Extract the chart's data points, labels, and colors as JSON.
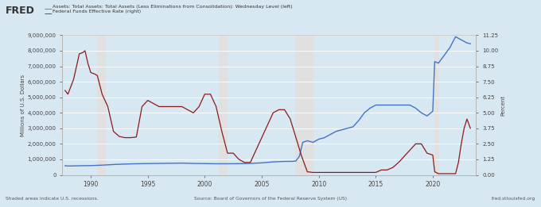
{
  "title_fred": "FRED",
  "legend_line1": "Assets: Total Assets: Total Assets (Less Eliminations from Consolidation): Wednesday Level (left)",
  "legend_line2": "Federal Funds Effective Rate (right)",
  "ylabel_left": "Millions of U.S. Dollars",
  "ylabel_right": "Percent",
  "xlabel_ticks": [
    1990,
    1995,
    2000,
    2005,
    2010,
    2015,
    2020
  ],
  "xlim": [
    1987.5,
    2023.8
  ],
  "ylim_left": [
    0,
    9000000
  ],
  "ylim_right": [
    0,
    11.25
  ],
  "yticks_left": [
    0,
    1000000,
    2000000,
    3000000,
    4000000,
    5000000,
    6000000,
    7000000,
    8000000,
    9000000
  ],
  "yticks_right": [
    0.0,
    1.25,
    2.5,
    3.75,
    5.0,
    6.25,
    7.5,
    8.75,
    10.0,
    11.25
  ],
  "ytick_labels_left": [
    "0",
    "1,000,000",
    "2,000,000",
    "3,000,000",
    "4,000,000",
    "5,000,000",
    "6,000,000",
    "7,000,000",
    "8,000,000",
    "9,000,000"
  ],
  "ytick_labels_right": [
    "0.00",
    "1.25",
    "2.50",
    "3.75",
    "5.00",
    "6.25",
    "7.50",
    "8.75",
    "10.00",
    "11.25"
  ],
  "recession_periods": [
    [
      1990.58,
      1991.25
    ],
    [
      2001.25,
      2001.92
    ],
    [
      2007.92,
      2009.5
    ],
    [
      2020.17,
      2020.5
    ]
  ],
  "background_color": "#d8e8f3",
  "plot_bg_color": "#d8e8f3",
  "recession_color": "#e0e0e0",
  "grid_color": "#ffffff",
  "assets_color": "#4472c4",
  "fedfunds_color": "#8b1a1a",
  "footer_left": "Shaded areas indicate U.S. recessions.",
  "footer_center": "Source: Board of Governors of the Federal Reserve System (US)",
  "footer_right": "fred.stlouisfed.org",
  "assets_data": [
    [
      1987.75,
      590000
    ],
    [
      1988.0,
      575000
    ],
    [
      1988.5,
      580000
    ],
    [
      1989.0,
      590000
    ],
    [
      1990.0,
      600000
    ],
    [
      1991.0,
      630000
    ],
    [
      1992.0,
      670000
    ],
    [
      1993.0,
      700000
    ],
    [
      1994.0,
      720000
    ],
    [
      1995.0,
      730000
    ],
    [
      1996.0,
      740000
    ],
    [
      1997.0,
      750000
    ],
    [
      1998.0,
      760000
    ],
    [
      1999.0,
      740000
    ],
    [
      2000.0,
      730000
    ],
    [
      2001.0,
      720000
    ],
    [
      2002.0,
      720000
    ],
    [
      2003.0,
      725000
    ],
    [
      2004.0,
      740000
    ],
    [
      2005.0,
      775000
    ],
    [
      2006.0,
      840000
    ],
    [
      2007.0,
      870000
    ],
    [
      2007.75,
      875000
    ],
    [
      2008.0,
      900000
    ],
    [
      2008.3,
      1200000
    ],
    [
      2008.6,
      2100000
    ],
    [
      2009.0,
      2200000
    ],
    [
      2009.5,
      2100000
    ],
    [
      2010.0,
      2300000
    ],
    [
      2010.5,
      2400000
    ],
    [
      2011.0,
      2600000
    ],
    [
      2011.5,
      2800000
    ],
    [
      2012.0,
      2900000
    ],
    [
      2012.5,
      3000000
    ],
    [
      2013.0,
      3100000
    ],
    [
      2013.5,
      3500000
    ],
    [
      2014.0,
      4000000
    ],
    [
      2014.5,
      4300000
    ],
    [
      2015.0,
      4500000
    ],
    [
      2015.5,
      4500000
    ],
    [
      2016.0,
      4500000
    ],
    [
      2016.5,
      4500000
    ],
    [
      2017.0,
      4500000
    ],
    [
      2017.5,
      4500000
    ],
    [
      2018.0,
      4500000
    ],
    [
      2018.5,
      4300000
    ],
    [
      2019.0,
      4000000
    ],
    [
      2019.5,
      3800000
    ],
    [
      2020.0,
      4100000
    ],
    [
      2020.17,
      7300000
    ],
    [
      2020.5,
      7200000
    ],
    [
      2021.0,
      7700000
    ],
    [
      2021.5,
      8200000
    ],
    [
      2022.0,
      8900000
    ],
    [
      2022.5,
      8700000
    ],
    [
      2023.0,
      8500000
    ],
    [
      2023.3,
      8450000
    ]
  ],
  "fedfunds_data": [
    [
      1987.75,
      6.8
    ],
    [
      1988.0,
      6.5
    ],
    [
      1988.5,
      7.7
    ],
    [
      1989.0,
      9.75
    ],
    [
      1989.3,
      9.85
    ],
    [
      1989.5,
      10.0
    ],
    [
      1989.75,
      9.0
    ],
    [
      1990.0,
      8.25
    ],
    [
      1990.4,
      8.1
    ],
    [
      1990.58,
      8.0
    ],
    [
      1991.0,
      6.5
    ],
    [
      1991.5,
      5.5
    ],
    [
      1992.0,
      3.5
    ],
    [
      1992.5,
      3.1
    ],
    [
      1993.0,
      3.0
    ],
    [
      1993.5,
      3.0
    ],
    [
      1994.0,
      3.05
    ],
    [
      1994.5,
      5.5
    ],
    [
      1995.0,
      6.0
    ],
    [
      1995.5,
      5.75
    ],
    [
      1996.0,
      5.5
    ],
    [
      1996.5,
      5.5
    ],
    [
      1997.0,
      5.5
    ],
    [
      1997.5,
      5.5
    ],
    [
      1998.0,
      5.5
    ],
    [
      1998.5,
      5.25
    ],
    [
      1999.0,
      5.0
    ],
    [
      1999.5,
      5.5
    ],
    [
      2000.0,
      6.5
    ],
    [
      2000.5,
      6.5
    ],
    [
      2001.0,
      5.5
    ],
    [
      2001.5,
      3.5
    ],
    [
      2002.0,
      1.75
    ],
    [
      2002.5,
      1.75
    ],
    [
      2003.0,
      1.25
    ],
    [
      2003.5,
      1.0
    ],
    [
      2004.0,
      1.0
    ],
    [
      2004.5,
      2.0
    ],
    [
      2005.0,
      3.0
    ],
    [
      2005.5,
      4.0
    ],
    [
      2006.0,
      5.0
    ],
    [
      2006.5,
      5.25
    ],
    [
      2007.0,
      5.25
    ],
    [
      2007.5,
      4.5
    ],
    [
      2008.0,
      3.0
    ],
    [
      2008.5,
      1.5
    ],
    [
      2009.0,
      0.25
    ],
    [
      2009.5,
      0.2
    ],
    [
      2010.0,
      0.2
    ],
    [
      2010.5,
      0.2
    ],
    [
      2011.0,
      0.2
    ],
    [
      2011.5,
      0.2
    ],
    [
      2012.0,
      0.2
    ],
    [
      2012.5,
      0.2
    ],
    [
      2013.0,
      0.2
    ],
    [
      2013.5,
      0.2
    ],
    [
      2014.0,
      0.2
    ],
    [
      2014.5,
      0.2
    ],
    [
      2015.0,
      0.2
    ],
    [
      2015.5,
      0.4
    ],
    [
      2016.0,
      0.4
    ],
    [
      2016.5,
      0.6
    ],
    [
      2017.0,
      1.0
    ],
    [
      2017.5,
      1.5
    ],
    [
      2018.0,
      2.0
    ],
    [
      2018.5,
      2.5
    ],
    [
      2019.0,
      2.5
    ],
    [
      2019.5,
      1.75
    ],
    [
      2020.0,
      1.6
    ],
    [
      2020.17,
      0.25
    ],
    [
      2020.5,
      0.1
    ],
    [
      2021.0,
      0.1
    ],
    [
      2021.5,
      0.1
    ],
    [
      2022.0,
      0.1
    ],
    [
      2022.25,
      1.0
    ],
    [
      2022.5,
      2.5
    ],
    [
      2022.75,
      3.75
    ],
    [
      2023.0,
      4.5
    ],
    [
      2023.3,
      3.75
    ]
  ]
}
